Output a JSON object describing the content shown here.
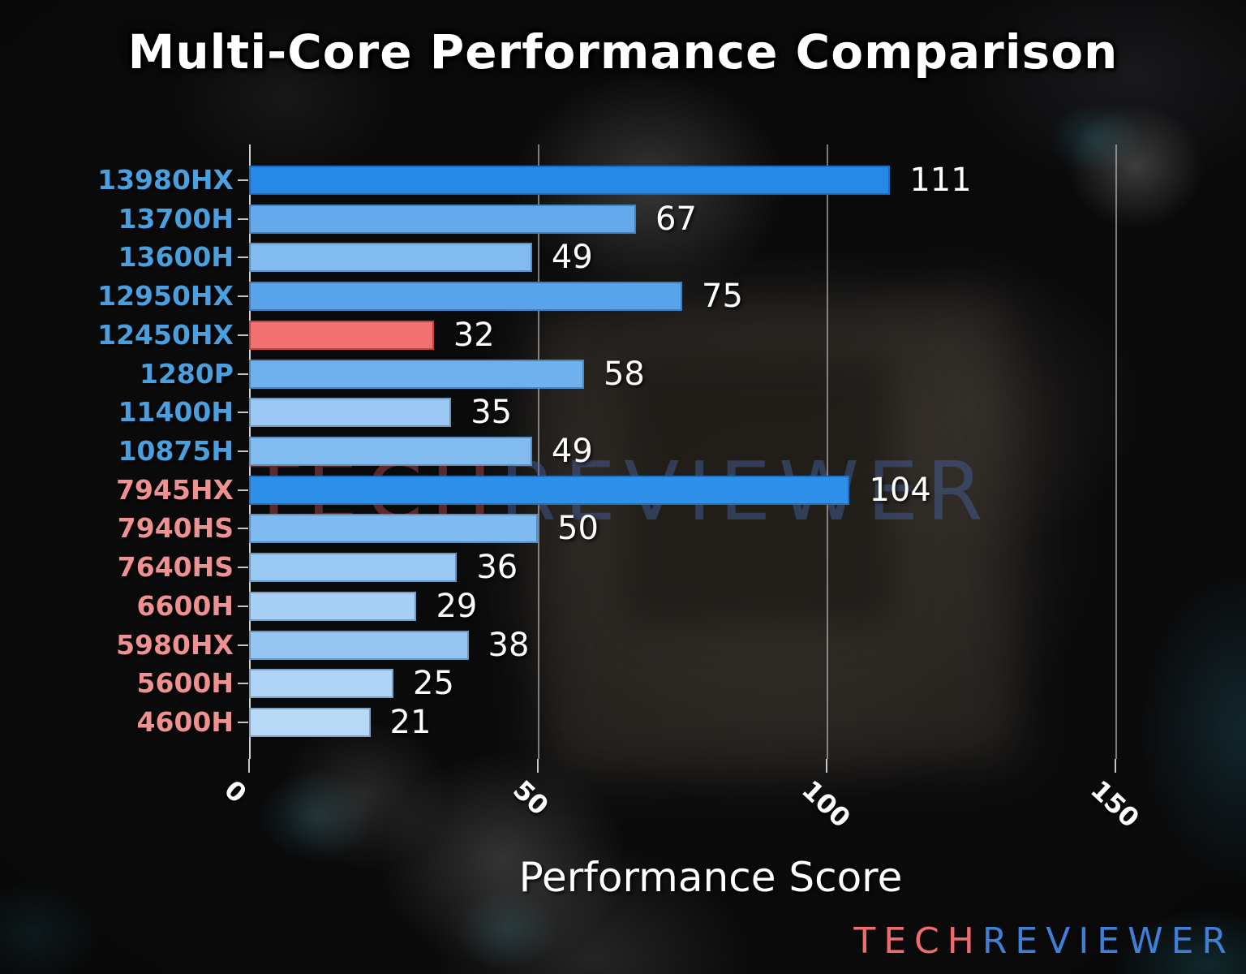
{
  "title_text": "Multi-Core Performance Comparison",
  "watermark": {
    "tech": "TECH",
    "reviewer": "REVIEWER",
    "tech_color": "rgba(158,68,68,0.55)",
    "reviewer_color": "rgba(72,100,165,0.45)"
  },
  "logo": {
    "tech": "TECH",
    "reviewer": "REVIEWER",
    "tech_color": "#EE6C6C",
    "reviewer_color": "#3F7FD6"
  },
  "colors": {
    "intel_label": "#4A9FDF",
    "amd_label": "#F09191",
    "highlight_bar": "#F17070",
    "text": "#FFFFFF"
  },
  "chart_data": {
    "type": "bar",
    "orientation": "horizontal",
    "title": "Multi-Core Performance Comparison",
    "xlabel": "Performance Score",
    "ylabel": "",
    "xlim": [
      0,
      150
    ],
    "xticks": [
      0,
      50,
      100,
      150
    ],
    "grid": true,
    "legend": false,
    "categories": [
      "13980HX",
      "13700H",
      "13600H",
      "12950HX",
      "12450HX",
      "1280P",
      "11400H",
      "10875H",
      "7945HX",
      "7940HS",
      "7640HS",
      "6600H",
      "5980HX",
      "5600H",
      "4600H"
    ],
    "values": [
      111,
      67,
      49,
      75,
      32,
      58,
      35,
      49,
      104,
      50,
      36,
      29,
      38,
      25,
      21
    ],
    "bars": [
      {
        "category": "13980HX",
        "value": 111,
        "bar_color": "#2689E8",
        "category_color": "#4A9FDF",
        "highlighted": false
      },
      {
        "category": "13700H",
        "value": 67,
        "bar_color": "#63A9EC",
        "category_color": "#4A9FDF",
        "highlighted": false
      },
      {
        "category": "13600H",
        "value": 49,
        "bar_color": "#81BBF0",
        "category_color": "#4A9FDF",
        "highlighted": false
      },
      {
        "category": "12950HX",
        "value": 75,
        "bar_color": "#58A3EA",
        "category_color": "#4A9FDF",
        "highlighted": false
      },
      {
        "category": "12450HX",
        "value": 32,
        "bar_color": "#F17070",
        "category_color": "#4A9FDF",
        "highlighted": true
      },
      {
        "category": "1280P",
        "value": 58,
        "bar_color": "#6FB1EE",
        "category_color": "#4A9FDF",
        "highlighted": false
      },
      {
        "category": "11400H",
        "value": 35,
        "bar_color": "#9BC9F3",
        "category_color": "#4A9FDF",
        "highlighted": false
      },
      {
        "category": "10875H",
        "value": 49,
        "bar_color": "#81BBF0",
        "category_color": "#4A9FDF",
        "highlighted": false
      },
      {
        "category": "7945HX",
        "value": 104,
        "bar_color": "#2F90EA",
        "category_color": "#F09191",
        "highlighted": false
      },
      {
        "category": "7940HS",
        "value": 50,
        "bar_color": "#7FBAF0",
        "category_color": "#F09191",
        "highlighted": false
      },
      {
        "category": "7640HS",
        "value": 36,
        "bar_color": "#99C8F3",
        "category_color": "#F09191",
        "highlighted": false
      },
      {
        "category": "6600H",
        "value": 29,
        "bar_color": "#A7D0F4",
        "category_color": "#F09191",
        "highlighted": false
      },
      {
        "category": "5980HX",
        "value": 38,
        "bar_color": "#95C6F2",
        "category_color": "#F09191",
        "highlighted": false
      },
      {
        "category": "5600H",
        "value": 25,
        "bar_color": "#AFD4F5",
        "category_color": "#F09191",
        "highlighted": false
      },
      {
        "category": "4600H",
        "value": 21,
        "bar_color": "#B7D9F6",
        "category_color": "#F09191",
        "highlighted": false
      }
    ]
  }
}
